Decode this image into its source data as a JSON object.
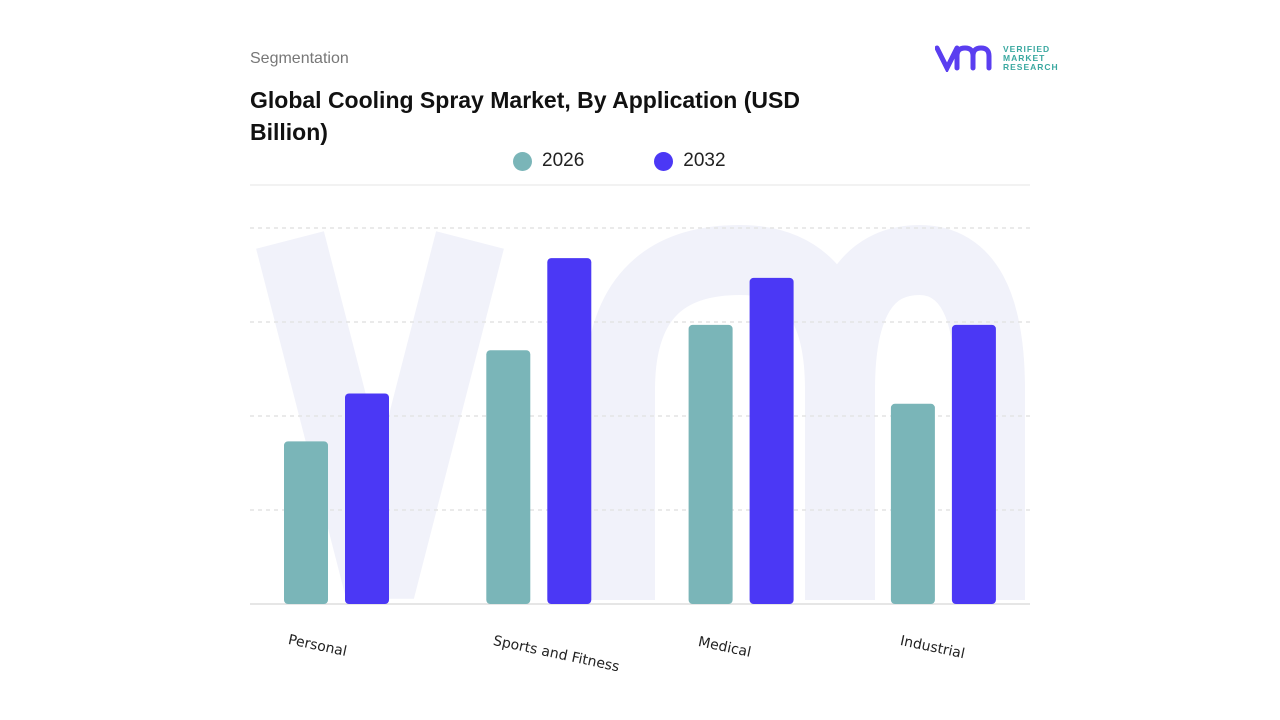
{
  "header": {
    "segment_label": "Segmentation",
    "title": "Global Cooling Spray Market, By Application (USD Billion)"
  },
  "logo": {
    "text": [
      "VERIFIED",
      "MARKET",
      "RESEARCH"
    ],
    "mark": "vmr"
  },
  "chart_data": {
    "type": "bar",
    "title": "Global Cooling Spray Market, By Application (USD Billion)",
    "categories": [
      "Personal",
      "Sports and Fitness",
      "Medical",
      "Industrial"
    ],
    "series": [
      {
        "name": "2026",
        "color": "#7ab5b8",
        "values": [
          1.73,
          2.7,
          2.97,
          2.13
        ]
      },
      {
        "name": "2032",
        "color": "#4b38f5",
        "values": [
          2.24,
          3.68,
          3.47,
          2.97
        ]
      }
    ],
    "ylim": [
      0,
      4
    ],
    "grid": true,
    "legend": "top-center",
    "xlabel": "",
    "ylabel": ""
  }
}
